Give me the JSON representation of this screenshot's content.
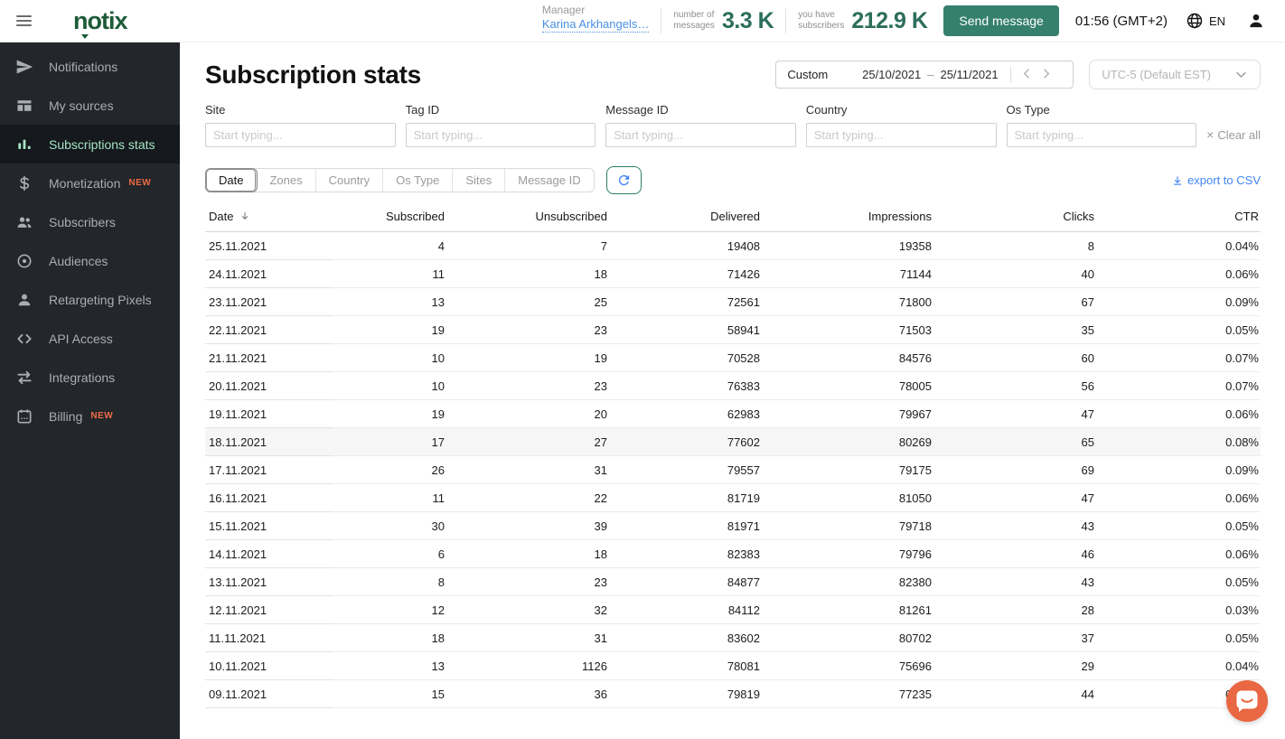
{
  "colors": {
    "brand_green": "#1d5b38",
    "accent_green": "#35806d",
    "stat_green": "#2c6e5b",
    "sidebar_bg": "#23262b",
    "sidebar_active_text": "#a5e4c5",
    "link_blue": "#4a90e2",
    "action_blue": "#4285f4",
    "badge_orange": "#ee6a45",
    "chat_orange": "#e96742"
  },
  "header": {
    "logo": "notix",
    "manager_label": "Manager",
    "manager_name": "Karina Arkhangels…",
    "stats": [
      {
        "label_line1": "number of",
        "label_line2": "messages",
        "value": "3.3 K"
      },
      {
        "label_line1": "you have",
        "label_line2": "subscribers",
        "value": "212.9 K"
      }
    ],
    "send_button": "Send message",
    "time": "01:56 (GMT+2)",
    "language": "EN"
  },
  "sidebar": {
    "items": [
      {
        "label": "Notifications",
        "icon": "send-icon"
      },
      {
        "label": "My sources",
        "icon": "sources-icon"
      },
      {
        "label": "Subscriptions stats",
        "icon": "bar-chart-icon",
        "active": true
      },
      {
        "label": "Monetization",
        "icon": "dollar-icon",
        "badge": "NEW"
      },
      {
        "label": "Subscribers",
        "icon": "people-icon"
      },
      {
        "label": "Audiences",
        "icon": "target-icon"
      },
      {
        "label": "Retargeting Pixels",
        "icon": "person-icon"
      },
      {
        "label": "API Access",
        "icon": "code-icon"
      },
      {
        "label": "Integrations",
        "icon": "arrows-swap-icon"
      },
      {
        "label": "Billing",
        "icon": "calendar-icon",
        "badge": "NEW"
      }
    ]
  },
  "main": {
    "title": "Subscription stats",
    "date_range": {
      "mode": "Custom",
      "start": "25/10/2021",
      "separator": "–",
      "end": "25/11/2021"
    },
    "timezone": "UTC-5 (Default EST)",
    "filters": [
      {
        "label": "Site",
        "placeholder": "Start typing..."
      },
      {
        "label": "Tag ID",
        "placeholder": "Start typing..."
      },
      {
        "label": "Message ID",
        "placeholder": "Start typing..."
      },
      {
        "label": "Country",
        "placeholder": "Start typing..."
      },
      {
        "label": "Os Type",
        "placeholder": "Start typing..."
      }
    ],
    "clear_all": "Clear all",
    "tabs": [
      {
        "label": "Date",
        "active": true
      },
      {
        "label": "Zones"
      },
      {
        "label": "Country"
      },
      {
        "label": "Os Type"
      },
      {
        "label": "Sites"
      },
      {
        "label": "Message ID"
      }
    ],
    "export_label": "export to CSV",
    "table": {
      "columns": [
        "Date",
        "Subscribed",
        "Unsubscribed",
        "Delivered",
        "Impressions",
        "Clicks",
        "CTR"
      ],
      "rows": [
        {
          "date": "25.11.2021",
          "subscribed": "4",
          "unsubscribed": "7",
          "delivered": "19408",
          "impressions": "19358",
          "clicks": "8",
          "ctr": "0.04%"
        },
        {
          "date": "24.11.2021",
          "subscribed": "11",
          "unsubscribed": "18",
          "delivered": "71426",
          "impressions": "71144",
          "clicks": "40",
          "ctr": "0.06%"
        },
        {
          "date": "23.11.2021",
          "subscribed": "13",
          "unsubscribed": "25",
          "delivered": "72561",
          "impressions": "71800",
          "clicks": "67",
          "ctr": "0.09%"
        },
        {
          "date": "22.11.2021",
          "subscribed": "19",
          "unsubscribed": "23",
          "delivered": "58941",
          "impressions": "71503",
          "clicks": "35",
          "ctr": "0.05%"
        },
        {
          "date": "21.11.2021",
          "subscribed": "10",
          "unsubscribed": "19",
          "delivered": "70528",
          "impressions": "84576",
          "clicks": "60",
          "ctr": "0.07%"
        },
        {
          "date": "20.11.2021",
          "subscribed": "10",
          "unsubscribed": "23",
          "delivered": "76383",
          "impressions": "78005",
          "clicks": "56",
          "ctr": "0.07%"
        },
        {
          "date": "19.11.2021",
          "subscribed": "19",
          "unsubscribed": "20",
          "delivered": "62983",
          "impressions": "79967",
          "clicks": "47",
          "ctr": "0.06%"
        },
        {
          "date": "18.11.2021",
          "subscribed": "17",
          "unsubscribed": "27",
          "delivered": "77602",
          "impressions": "80269",
          "clicks": "65",
          "ctr": "0.08%",
          "highlighted": true
        },
        {
          "date": "17.11.2021",
          "subscribed": "26",
          "unsubscribed": "31",
          "delivered": "79557",
          "impressions": "79175",
          "clicks": "69",
          "ctr": "0.09%"
        },
        {
          "date": "16.11.2021",
          "subscribed": "11",
          "unsubscribed": "22",
          "delivered": "81719",
          "impressions": "81050",
          "clicks": "47",
          "ctr": "0.06%"
        },
        {
          "date": "15.11.2021",
          "subscribed": "30",
          "unsubscribed": "39",
          "delivered": "81971",
          "impressions": "79718",
          "clicks": "43",
          "ctr": "0.05%"
        },
        {
          "date": "14.11.2021",
          "subscribed": "6",
          "unsubscribed": "18",
          "delivered": "82383",
          "impressions": "79796",
          "clicks": "46",
          "ctr": "0.06%"
        },
        {
          "date": "13.11.2021",
          "subscribed": "8",
          "unsubscribed": "23",
          "delivered": "84877",
          "impressions": "82380",
          "clicks": "43",
          "ctr": "0.05%"
        },
        {
          "date": "12.11.2021",
          "subscribed": "12",
          "unsubscribed": "32",
          "delivered": "84112",
          "impressions": "81261",
          "clicks": "28",
          "ctr": "0.03%"
        },
        {
          "date": "11.11.2021",
          "subscribed": "18",
          "unsubscribed": "31",
          "delivered": "83602",
          "impressions": "80702",
          "clicks": "37",
          "ctr": "0.05%"
        },
        {
          "date": "10.11.2021",
          "subscribed": "13",
          "unsubscribed": "1126",
          "delivered": "78081",
          "impressions": "75696",
          "clicks": "29",
          "ctr": "0.04%"
        },
        {
          "date": "09.11.2021",
          "subscribed": "15",
          "unsubscribed": "36",
          "delivered": "79819",
          "impressions": "77235",
          "clicks": "44",
          "ctr": "0.06%"
        }
      ]
    }
  }
}
